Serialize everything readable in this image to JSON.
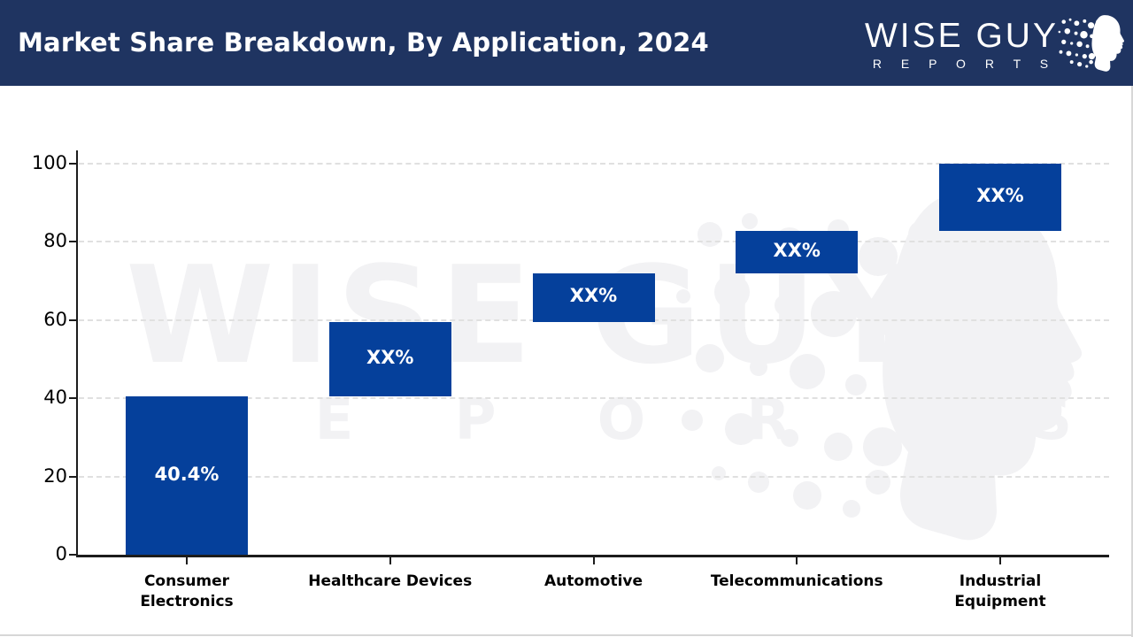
{
  "header": {
    "title": "Market Share Breakdown, By Application, 2024",
    "bg_color": "#1f3461",
    "logo": {
      "line1": "WISE GUY",
      "line2": "R E P O R T S"
    }
  },
  "watermark": {
    "line1": "WISE GUY",
    "line2": "R E P O R T S"
  },
  "chart_data": {
    "type": "bar",
    "subtype": "waterfall",
    "title": "Market Share Breakdown, By Application, 2024",
    "bar_color": "#05409b",
    "ylim": [
      0,
      100
    ],
    "yticks": [
      0,
      20,
      40,
      60,
      80,
      100
    ],
    "grid": "horizontal-dashed",
    "legend": "none",
    "categories": [
      "Consumer Electronics",
      "Healthcare Devices",
      "Automotive",
      "Telecommunications",
      "Industrial Equipment"
    ],
    "segments": [
      {
        "category": "Consumer Electronics",
        "category_display": "Consumer\nElectronics",
        "start": 0,
        "end": 40.4,
        "label": "40.4%"
      },
      {
        "category": "Healthcare Devices",
        "category_display": "Healthcare Devices",
        "start": 40.4,
        "end": 59.5,
        "label": "XX%"
      },
      {
        "category": "Automotive",
        "category_display": "Automotive",
        "start": 59.5,
        "end": 72.0,
        "label": "XX%"
      },
      {
        "category": "Telecommunications",
        "category_display": "Telecommunications",
        "start": 72.0,
        "end": 82.9,
        "label": "XX%"
      },
      {
        "category": "Industrial Equipment",
        "category_display": "Industrial\nEquipment",
        "start": 82.9,
        "end": 100,
        "label": "XX%"
      }
    ]
  }
}
